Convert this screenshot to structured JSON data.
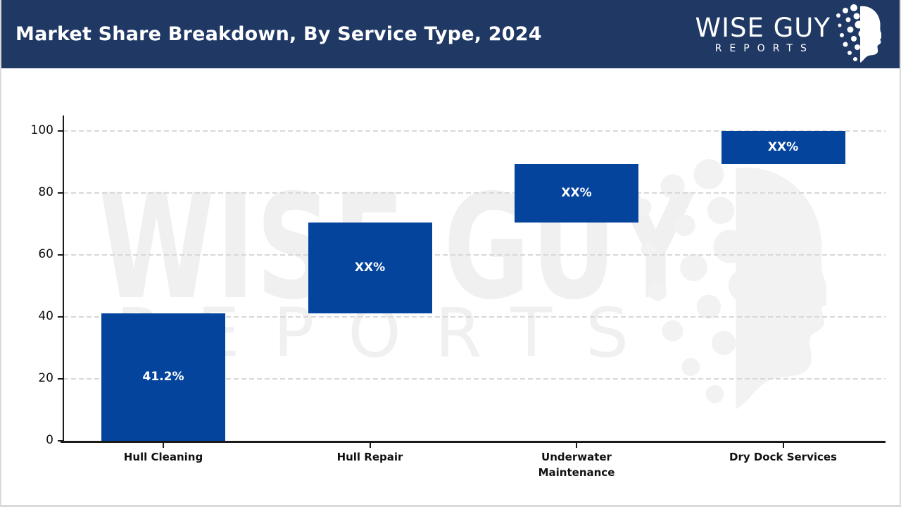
{
  "header": {
    "title": "Market Share Breakdown, By Service Type, 2024",
    "bg_color": "#1f3864",
    "logo": {
      "line1": "WISE GUY",
      "line2": "REPORTS"
    }
  },
  "watermark": {
    "line1": "WISE GUY",
    "line2": "REPORTS"
  },
  "chart_data": {
    "type": "bar",
    "variant": "waterfall-style floating percentage bars",
    "title": "Market Share Breakdown, By Service Type, 2024",
    "categories": [
      "Hull Cleaning",
      "Hull Repair",
      "Underwater Maintenance",
      "Dry Dock Services"
    ],
    "segments": [
      {
        "category": "Hull Cleaning",
        "from": 0,
        "to": 41.2,
        "label": "41.2%"
      },
      {
        "category": "Hull Repair",
        "from": 41.2,
        "to": 70.4,
        "label": "XX%"
      },
      {
        "category": "Underwater\nMaintenance",
        "from": 70.4,
        "to": 89.4,
        "label": "XX%"
      },
      {
        "category": "Dry Dock Services",
        "from": 89.4,
        "to": 100,
        "label": "XX%"
      }
    ],
    "xlabel": "",
    "ylabel": "",
    "ylim": [
      0,
      100
    ],
    "yticks": [
      0,
      20,
      40,
      60,
      80,
      100
    ],
    "grid": "horizontal dashed",
    "legend": "none",
    "bar_color": "#04449c",
    "bar_label_color": "#ffffff",
    "axis_color": "#1a1a1a",
    "grid_color": "#d8d8d8"
  }
}
